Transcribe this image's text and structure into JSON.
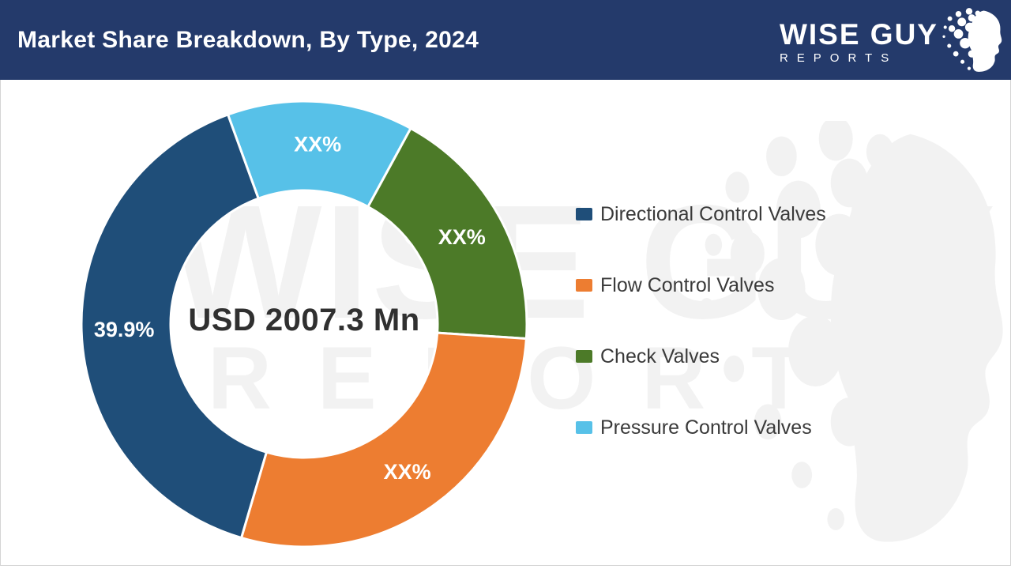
{
  "header": {
    "title": "Market Share Breakdown, By Type, 2024",
    "logo": {
      "name_line": "WISE GUY",
      "sub_line": "REPORTS"
    }
  },
  "watermark": {
    "name_line": "WISE GUY",
    "sub_line": "REPORTS"
  },
  "chart_data": {
    "type": "donut",
    "title": "Market Share Breakdown, By Type, 2024",
    "center_label": "USD 2007.3 Mn",
    "units": "USD Mn",
    "legend_position": "right",
    "start_angle_deg": -20,
    "rotation": "counterclockwise in legend order",
    "inner_radius_ratio": 0.6,
    "segments": [
      {
        "label": "Directional Control Valves",
        "value_display": "39.9%",
        "value_pct_est": 39.9,
        "color": "#1F4E79"
      },
      {
        "label": "Flow Control Valves",
        "value_display": "XX%",
        "value_pct_est": 28.5,
        "color": "#ED7D31"
      },
      {
        "label": "Check Valves",
        "value_display": "XX%",
        "value_pct_est": 18.1,
        "color": "#4C7A28"
      },
      {
        "label": "Pressure Control Valves",
        "value_display": "XX%",
        "value_pct_est": 13.5,
        "color": "#57C1E8"
      }
    ]
  },
  "colors": {
    "header_bg": "#243A6B",
    "content_border": "#D4D4D4",
    "center_text": "#303030",
    "legend_text": "#3A3A3A",
    "slice_label": "#FFFFFF",
    "watermark": "#F2F2F2"
  }
}
